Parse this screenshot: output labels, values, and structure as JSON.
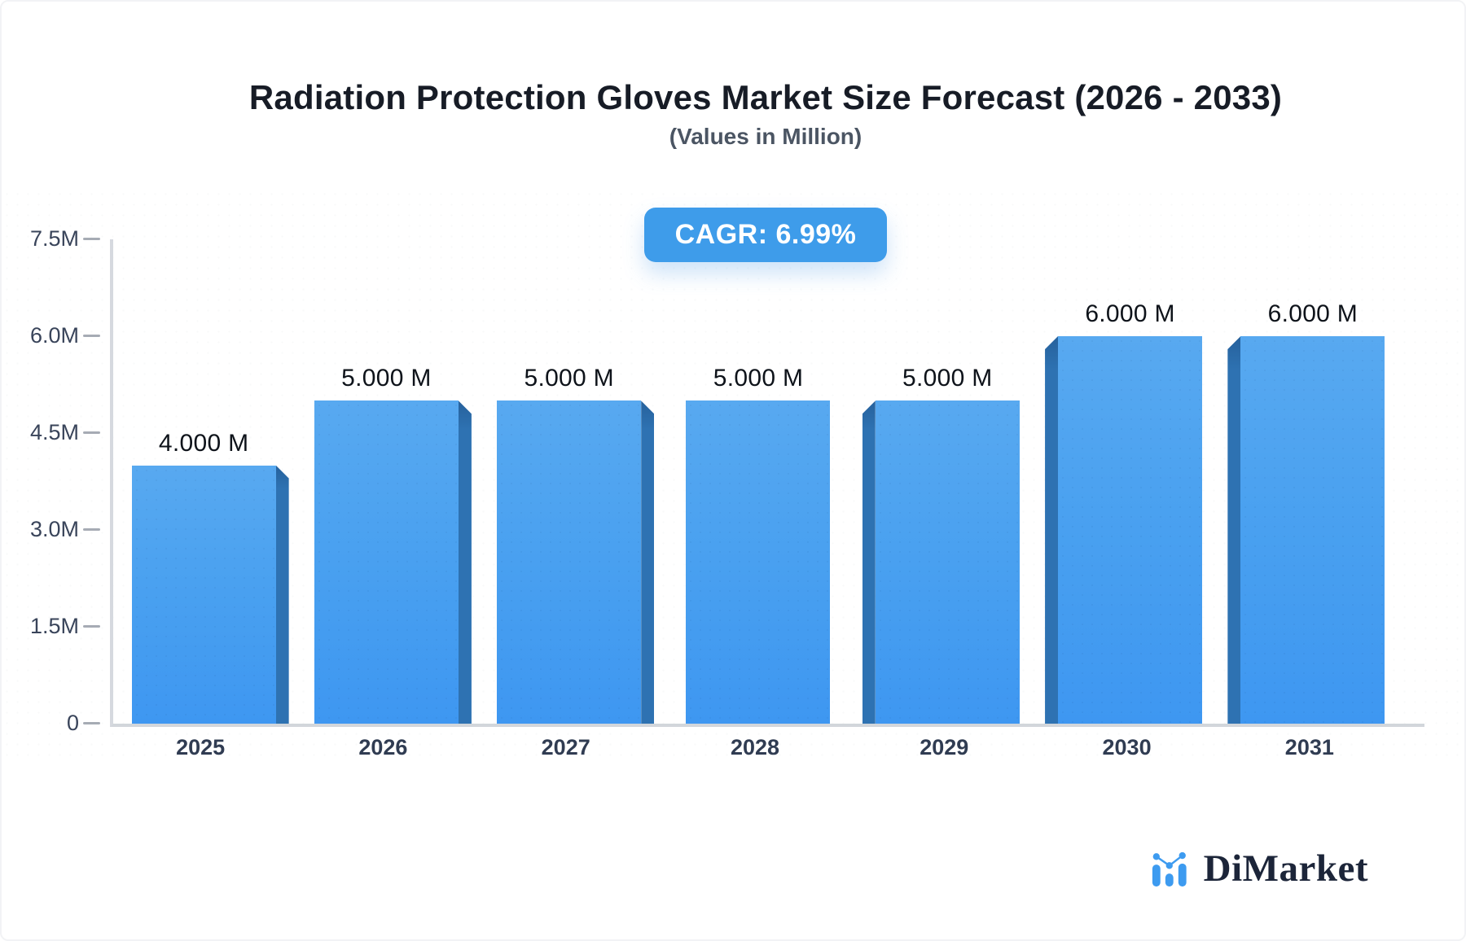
{
  "header": {
    "title": "Radiation Protection Gloves Market Size Forecast (2026 - 2033)",
    "subtitle": "(Values in Million)"
  },
  "badge": {
    "label": "CAGR: 6.99%"
  },
  "chart_data": {
    "type": "bar",
    "title": "Radiation Protection Gloves Market Size Forecast (2026 - 2033)",
    "subtitle": "(Values in Million)",
    "unit": "Million",
    "categories": [
      "2025",
      "2026",
      "2027",
      "2028",
      "2029",
      "2030",
      "2031"
    ],
    "values": [
      4.0,
      5.0,
      5.0,
      5.0,
      5.0,
      6.0,
      6.0
    ],
    "value_labels": [
      "4.000 M",
      "5.000 M",
      "5.000 M",
      "5.000 M",
      "5.000 M",
      "6.000 M",
      "6.000 M"
    ],
    "ylim": [
      0,
      7.5
    ],
    "yticks": [
      {
        "label": "7.5M",
        "value": 7.5
      },
      {
        "label": "6.0M",
        "value": 6.0
      },
      {
        "label": "4.5M",
        "value": 4.5
      },
      {
        "label": "3.0M",
        "value": 3.0
      },
      {
        "label": "1.5M",
        "value": 1.5
      },
      {
        "label": "0",
        "value": 0
      }
    ],
    "grid": false,
    "legend": false,
    "style": "3d-perspective-bars, side faces angle toward center bar"
  },
  "logo": {
    "text": "DiMarket",
    "icon": "bar-chart-logo-icon"
  },
  "colors": {
    "badge_bg": "#3e9cea",
    "bar_top": "#58a9f0",
    "bar_bottom": "#3e97f1",
    "bar_side": "#2e72b2",
    "axis_line": "#d6d9df",
    "baseline": "#d2d6db",
    "title_color": "#171c26",
    "subtitle_color": "#4b5563",
    "tick_text": "#39445a",
    "category_text": "#303c52",
    "value_text": "#0e131a",
    "logo_text": "#1c2539",
    "logo_icon": "#3d9bf0"
  }
}
